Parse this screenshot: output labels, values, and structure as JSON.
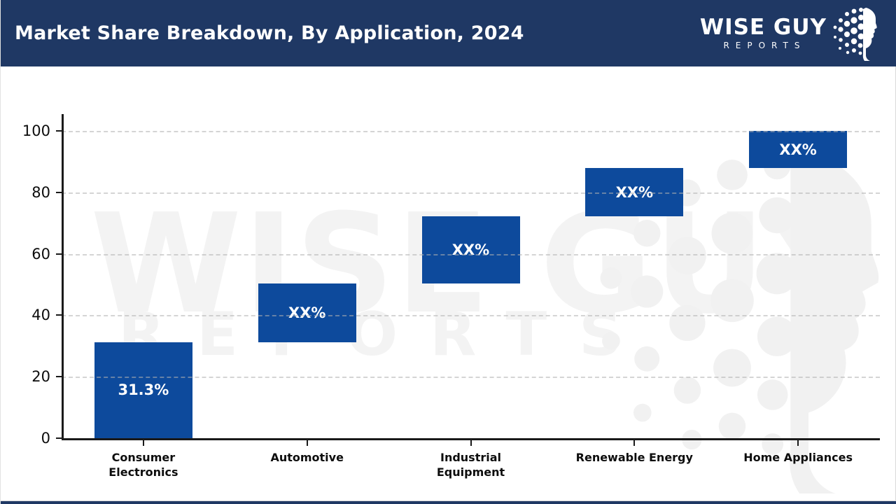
{
  "header": {
    "title": "Market Share Breakdown, By Application, 2024",
    "bg_color": "#1f3864",
    "logo": {
      "line1": "WISE GUY",
      "line2": "REPORTS"
    }
  },
  "watermark": {
    "line1": "WISE GUY",
    "line2": "REPORTS"
  },
  "footer": {
    "bar_color": "#1f3864"
  },
  "chart_data": {
    "type": "bar",
    "subtype": "waterfall",
    "title": "Market Share Breakdown, By Application, 2024",
    "categories": [
      [
        "Consumer",
        "Electronics"
      ],
      [
        "Automotive"
      ],
      [
        "Industrial",
        "Equipment"
      ],
      [
        "Renewable Energy"
      ],
      [
        "Home Appliances"
      ]
    ],
    "segments": [
      {
        "category": "Consumer Electronics",
        "start": 0,
        "end": 31.3,
        "label": "31.3%"
      },
      {
        "category": "Automotive",
        "start": 31.3,
        "end": 50.3,
        "label": "XX%"
      },
      {
        "category": "Industrial Equipment",
        "start": 50.3,
        "end": 72.2,
        "label": "XX%"
      },
      {
        "category": "Renewable Energy",
        "start": 72.2,
        "end": 87.9,
        "label": "XX%"
      },
      {
        "category": "Home Appliances",
        "start": 87.9,
        "end": 100,
        "label": "XX%"
      }
    ],
    "yticks": [
      0,
      20,
      40,
      60,
      80,
      100
    ],
    "ylim": [
      0,
      105
    ],
    "xlabel": "",
    "ylabel": "",
    "grid": "horizontal-dashed",
    "legend": "none",
    "bar_color": "#0d4a9c",
    "bar_label_color": "#ffffff",
    "axis_color": "#1a1a1a",
    "gridline_color": "#d9d9d9"
  }
}
